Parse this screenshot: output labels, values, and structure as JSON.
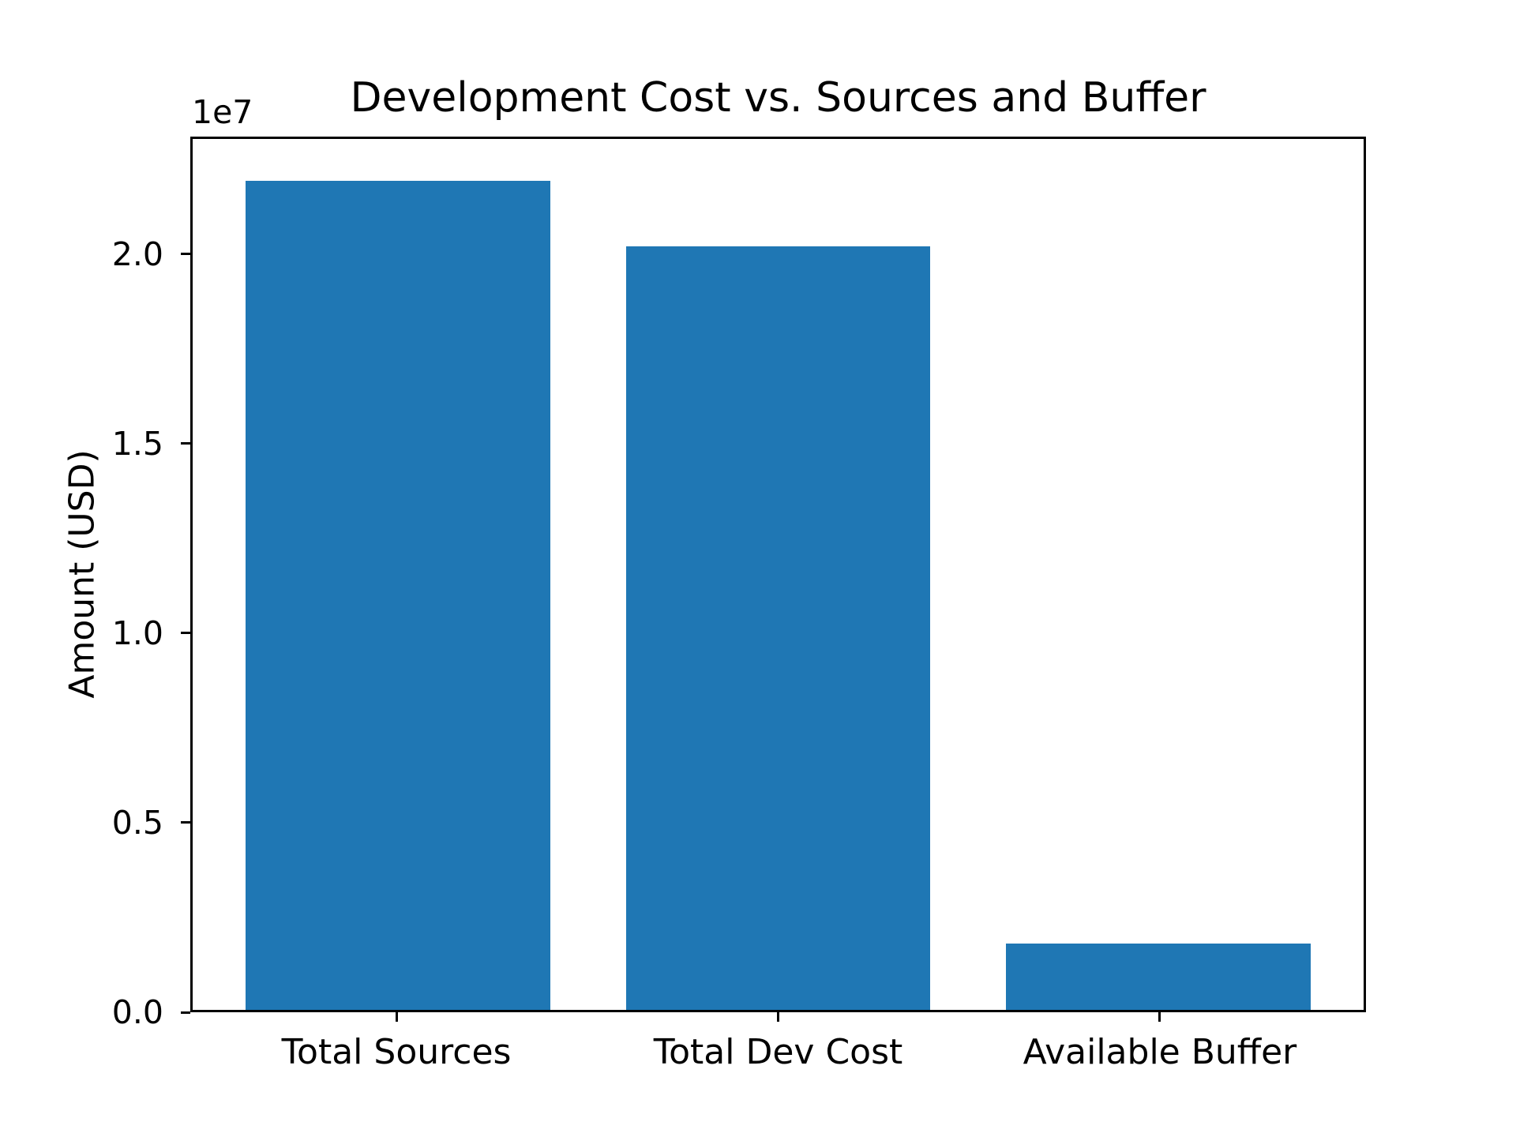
{
  "figure": {
    "background": "#ffffff",
    "text_color": "#000000",
    "axis_color": "#000000"
  },
  "chart_data": {
    "type": "bar",
    "title": "Development Cost vs. Sources and Buffer",
    "xlabel": "",
    "ylabel": "Amount (USD)",
    "y_offset_text": "1e7",
    "categories": [
      "Total Sources",
      "Total Dev Cost",
      "Available Buffer"
    ],
    "values": [
      22000000,
      20250000,
      1750000
    ],
    "bar_color": "#1f77b4",
    "ylim": [
      0,
      23100000
    ],
    "ytick_values": [
      0,
      5000000,
      10000000,
      15000000,
      20000000
    ],
    "ytick_labels": [
      "0.0",
      "0.5",
      "1.0",
      "1.5",
      "2.0"
    ],
    "grid": false,
    "legend": "none"
  }
}
